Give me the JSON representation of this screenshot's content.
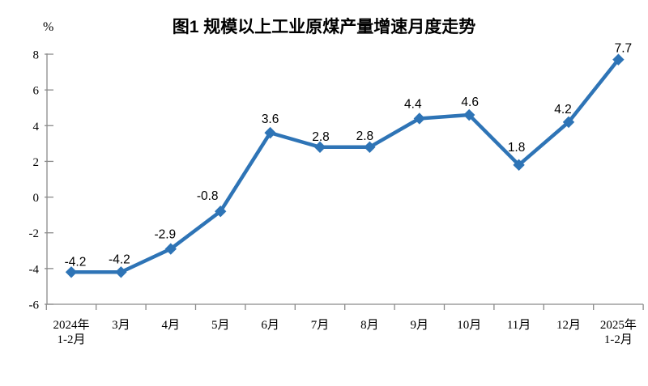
{
  "chart_data": {
    "type": "line",
    "title": "图1  规模以上工业原煤产量增速月度走势",
    "ylabel": "%",
    "categories": [
      "2024年\n1-2月",
      "3月",
      "4月",
      "5月",
      "6月",
      "7月",
      "8月",
      "9月",
      "10月",
      "11月",
      "12月",
      "2025年\n1-2月"
    ],
    "values": [
      -4.2,
      -4.2,
      -2.9,
      -0.8,
      3.6,
      2.8,
      2.8,
      4.4,
      4.6,
      1.8,
      4.2,
      7.7
    ],
    "point_labels": [
      "-4.2",
      "-4.2",
      "-2.9",
      "-0.8",
      "3.6",
      "2.8",
      "2.8",
      "4.4",
      "4.6",
      "1.8",
      "4.2",
      "7.7"
    ],
    "ylim": [
      -6,
      8
    ],
    "yticks": [
      8,
      6,
      4,
      2,
      0,
      -2,
      -4,
      -6
    ],
    "grid": false,
    "legend": "none",
    "marker": "diamond",
    "line_color": "#2E74B6",
    "axis_color": "#8A8A8A",
    "label_color": "#000000"
  }
}
